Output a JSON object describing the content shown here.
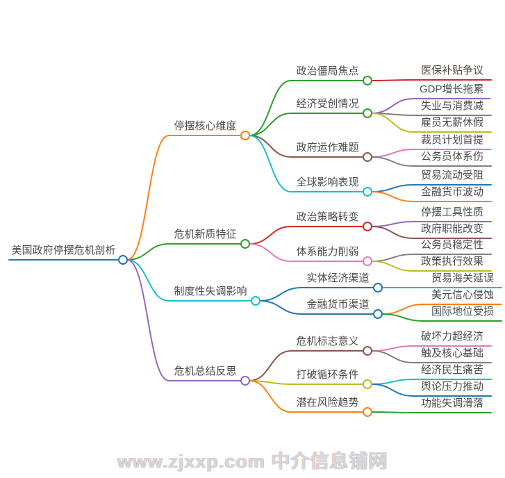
{
  "background": "#ffffff",
  "text_color": "#4a4a4a",
  "palette": {
    "blue": "#1f77b4",
    "orange": "#ff7f0e",
    "green": "#2ca02c",
    "red": "#d62728",
    "purple": "#9467bd",
    "brown": "#8c564b",
    "pink": "#e377c2",
    "gray": "#7f7f7f",
    "olive": "#bcbd22",
    "cyan": "#17becf"
  },
  "watermark": "www.zjxxp.com 中介信息铺网",
  "mindmap": {
    "label": "美国政府停摆危机剖析",
    "color": "blue",
    "children": [
      {
        "label": "停摆核心维度",
        "color": "orange",
        "children": [
          {
            "label": "政治僵局焦点",
            "color": "green",
            "children": [
              {
                "label": "医保补贴争议",
                "color": "red"
              }
            ]
          },
          {
            "label": "经济受创情况",
            "color": "green",
            "children": [
              {
                "label": "GDP增长拖累",
                "color": "purple"
              },
              {
                "label": "失业与消费减",
                "color": "gray"
              },
              {
                "label": "雇员无薪休假",
                "color": "olive"
              }
            ]
          },
          {
            "label": "政府运作难题",
            "color": "brown",
            "children": [
              {
                "label": "裁员计划首提",
                "color": "pink"
              },
              {
                "label": "公务员体系伤",
                "color": "gray"
              }
            ]
          },
          {
            "label": "全球影响表现",
            "color": "cyan",
            "children": [
              {
                "label": "贸易流动受阻",
                "color": "blue"
              },
              {
                "label": "金融货币波动",
                "color": "orange"
              }
            ]
          }
        ]
      },
      {
        "label": "危机新质特征",
        "color": "green",
        "children": [
          {
            "label": "政治策略转变",
            "color": "red",
            "children": [
              {
                "label": "停摆工具性质",
                "color": "purple"
              },
              {
                "label": "政府职能改变",
                "color": "brown"
              }
            ]
          },
          {
            "label": "体系能力削弱",
            "color": "pink",
            "children": [
              {
                "label": "公务员稳定性",
                "color": "gray"
              },
              {
                "label": "政策执行效果",
                "color": "olive"
              }
            ]
          }
        ]
      },
      {
        "label": "制度性失调影响",
        "color": "cyan",
        "children": [
          {
            "label": "实体经济渠道",
            "color": "blue",
            "children": [
              {
                "label": "贸易海关延误",
                "color": "cyan"
              }
            ]
          },
          {
            "label": "金融货币渠道",
            "color": "blue",
            "children": [
              {
                "label": "美元信心侵蚀",
                "color": "orange"
              },
              {
                "label": "国际地位受损",
                "color": "green"
              }
            ]
          }
        ]
      },
      {
        "label": "危机总结反思",
        "color": "purple",
        "children": [
          {
            "label": "危机标志意义",
            "color": "brown",
            "children": [
              {
                "label": "破坏力超经济",
                "color": "pink"
              },
              {
                "label": "触及核心基础",
                "color": "gray"
              }
            ]
          },
          {
            "label": "打破循环条件",
            "color": "olive",
            "children": [
              {
                "label": "经济民生痛苦",
                "color": "cyan"
              },
              {
                "label": "舆论压力推动",
                "color": "blue"
              }
            ]
          },
          {
            "label": "潜在风险趋势",
            "color": "orange",
            "children": [
              {
                "label": "功能失调滑落",
                "color": "green"
              }
            ]
          }
        ]
      }
    ]
  }
}
